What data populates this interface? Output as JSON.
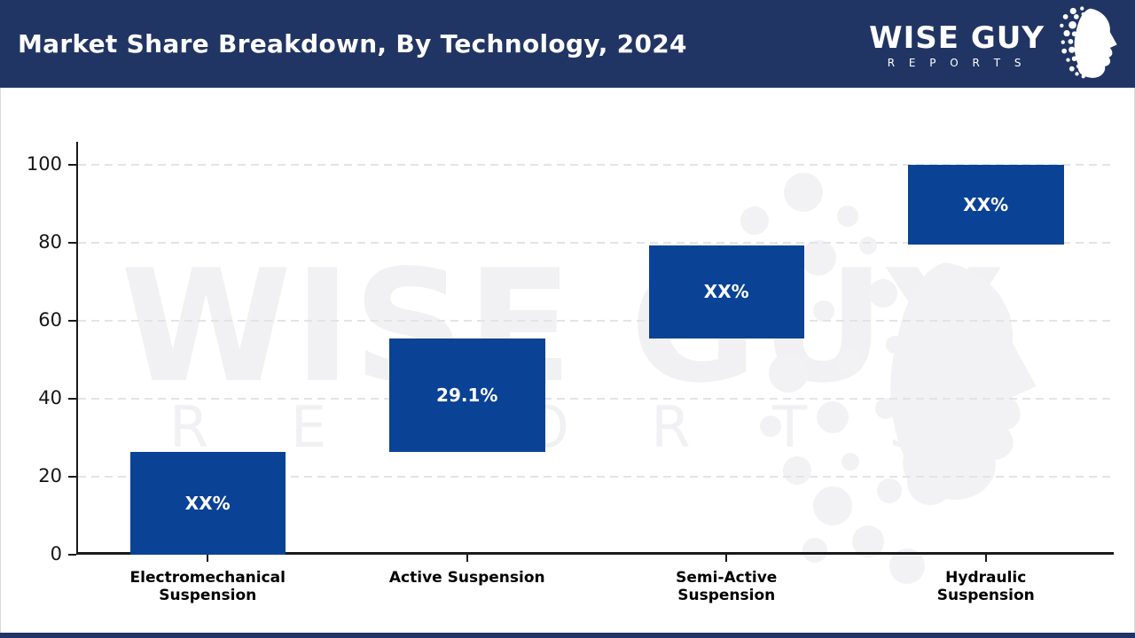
{
  "header": {
    "title": "Market Share Breakdown, By Technology, 2024",
    "logo_line1": "WISE GUY",
    "logo_line2": "R E P O R T S",
    "bg_color": "#213564"
  },
  "watermark": {
    "line1": "WISE GUY",
    "line2": "R E P O R T S"
  },
  "chart_data": {
    "type": "bar",
    "subtype": "waterfall",
    "title": "Market Share Breakdown, By Technology, 2024",
    "categories": [
      "Electromechanical\nSuspension",
      "Active Suspension",
      "Semi-Active\nSuspension",
      "Hydraulic\nSuspension"
    ],
    "series": [
      {
        "category": "Electromechanical Suspension",
        "label": "XX%",
        "start": 0,
        "end": 26.3
      },
      {
        "category": "Active Suspension",
        "label": "29.1%",
        "start": 26.3,
        "end": 55.4,
        "value": 29.1
      },
      {
        "category": "Semi-Active Suspension",
        "label": "XX%",
        "start": 55.4,
        "end": 79.5
      },
      {
        "category": "Hydraulic Suspension",
        "label": "XX%",
        "start": 79.5,
        "end": 100
      }
    ],
    "yticks": [
      0,
      20,
      40,
      60,
      80,
      100
    ],
    "ylim": [
      0,
      106
    ],
    "xlabel": "",
    "ylabel": "",
    "grid": "horizontal-dashed",
    "legend": "none",
    "bar_color": "#0a4296",
    "bar_label_color": "#ffffff",
    "axis_color": "#1a1a1a",
    "gridline_color": "#e4e4e7"
  },
  "footer": {
    "bg_color": "#213564"
  }
}
